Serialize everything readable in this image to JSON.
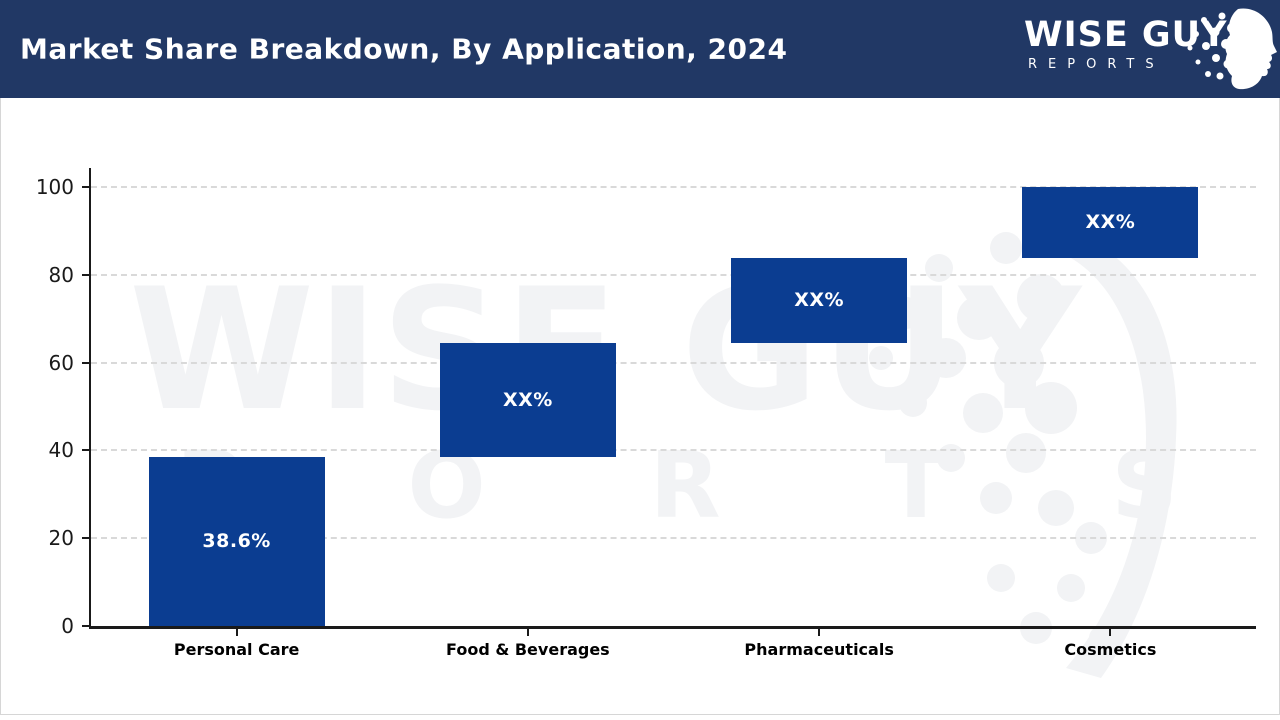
{
  "header": {
    "title": "Market Share Breakdown, By Application, 2024",
    "logo": {
      "line1": "WISE GUY",
      "line2": "REPORTS"
    }
  },
  "watermark": {
    "line1": "WISE GUY",
    "line2": "PORTS"
  },
  "chart_data": {
    "type": "bar",
    "subtype": "waterfall",
    "title": "Market Share Breakdown, By Application, 2024",
    "categories": [
      "Personal Care",
      "Food & Beverages",
      "Pharmaceuticals",
      "Cosmetics"
    ],
    "segments": [
      {
        "category": "Personal Care",
        "start": 0,
        "end": 38.6,
        "label": "38.6%"
      },
      {
        "category": "Food & Beverages",
        "start": 38.6,
        "end": 64.5,
        "label": "XX%"
      },
      {
        "category": "Pharmaceuticals",
        "start": 64.5,
        "end": 83.8,
        "label": "XX%"
      },
      {
        "category": "Cosmetics",
        "start": 83.8,
        "end": 100,
        "label": "XX%"
      }
    ],
    "xlabel": "",
    "ylabel": "",
    "ylim": [
      0,
      104.3
    ],
    "yticks": [
      0,
      20,
      40,
      60,
      80,
      100
    ],
    "grid": "horizontal-dashed",
    "legend": "none",
    "bar_color": "#0b3d91",
    "bar_label_color": "#ffffff"
  },
  "colors": {
    "header_bg": "#213865",
    "bar": "#0b3d91",
    "axis": "#1a1a1a",
    "grid": "#d9d9d9",
    "watermark": "#f2f3f5"
  }
}
